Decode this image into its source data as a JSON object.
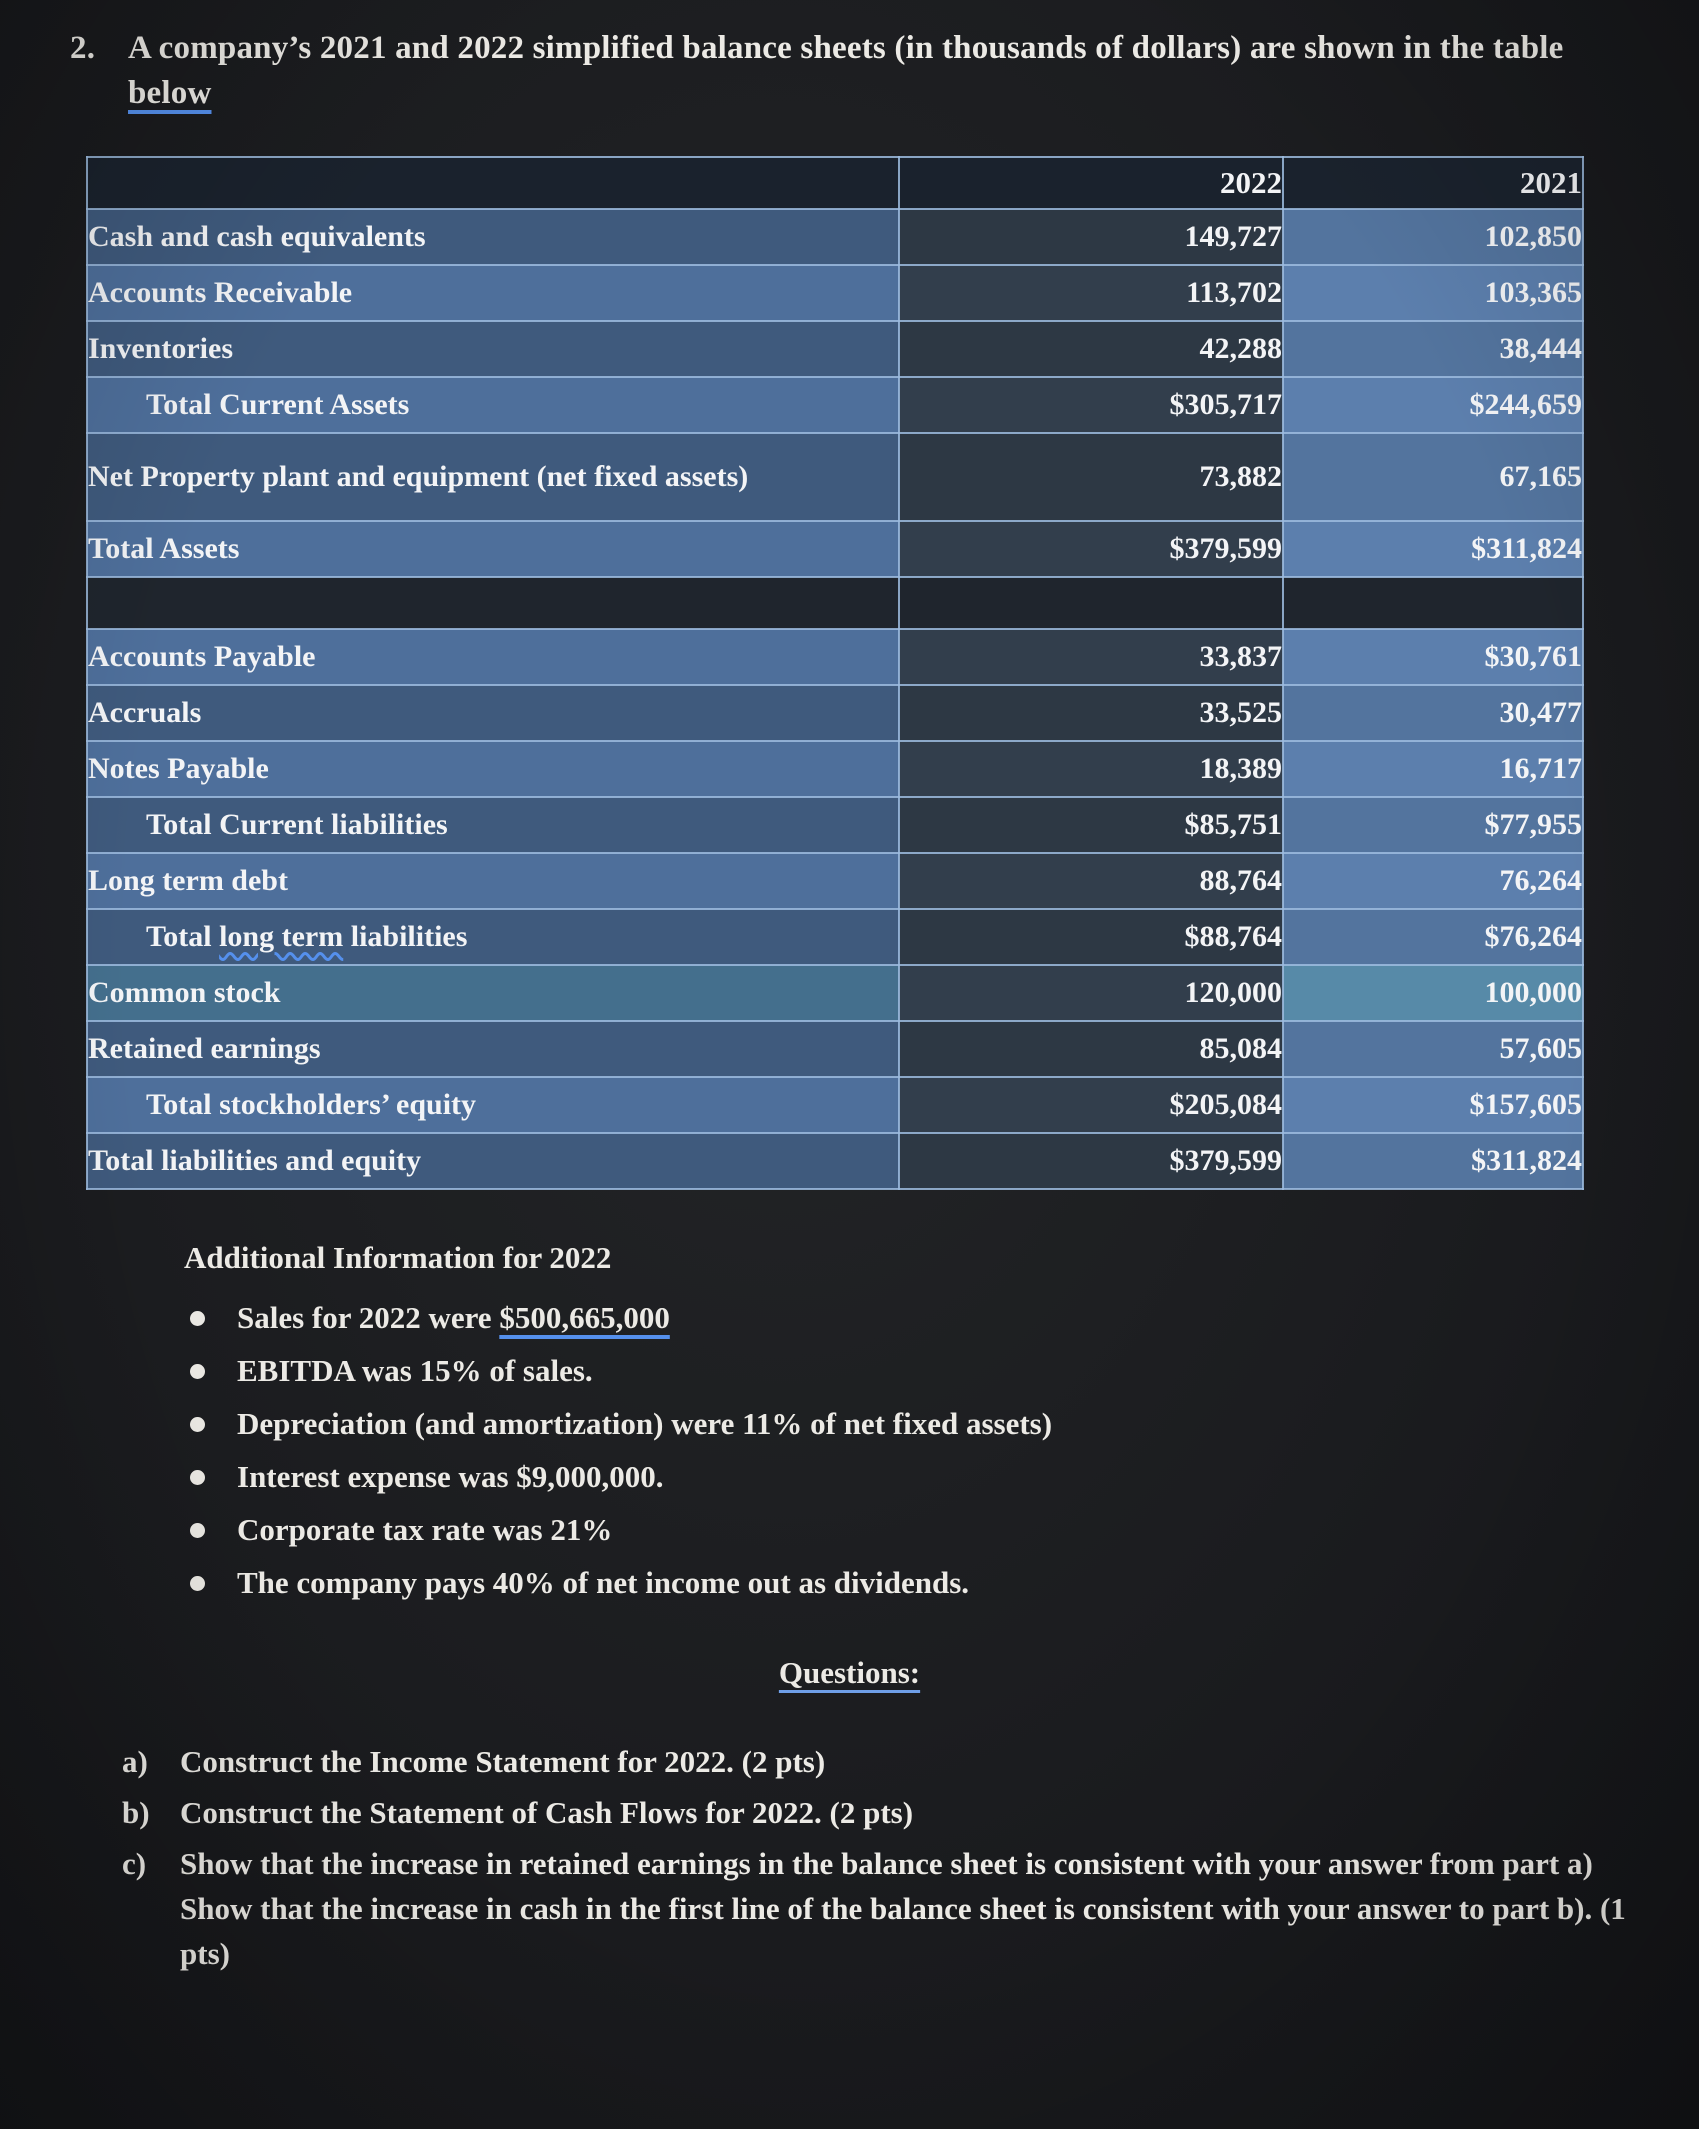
{
  "page": {
    "problem_number": "2.",
    "title_prefix": "A company’s 2021 and 2022 simplified balance sheets (in thousands of dollars) are shown in the table ",
    "title_underlined": "below"
  },
  "table": {
    "headers": {
      "label": "",
      "y2022": "2022",
      "y2021": "2021"
    },
    "rows": [
      {
        "label": "Cash and cash equivalents",
        "v2022": "149,727",
        "v2021": "102,850"
      },
      {
        "label": "Accounts Receivable",
        "v2022": "113,702",
        "v2021": "103,365"
      },
      {
        "label": "Inventories",
        "v2022": "42,288",
        "v2021": "38,444"
      },
      {
        "label": "Total Current Assets",
        "v2022": "$305,717",
        "v2021": "$244,659"
      },
      {
        "label": "Net Property plant and equipment (net fixed assets)",
        "v2022": "73,882",
        "v2021": "67,165"
      },
      {
        "label": "Total Assets",
        "v2022": "$379,599",
        "v2021": "$311,824"
      },
      {
        "label": "",
        "v2022": "",
        "v2021": ""
      },
      {
        "label": "Accounts Payable",
        "v2022": "33,837",
        "v2021": "$30,761"
      },
      {
        "label": "Accruals",
        "v2022": "33,525",
        "v2021": "30,477"
      },
      {
        "label": "Notes Payable",
        "v2022": "18,389",
        "v2021": "16,717"
      },
      {
        "label": "Total Current liabilities",
        "v2022": "$85,751",
        "v2021": "$77,955"
      },
      {
        "label": "Long term debt",
        "v2022": "88,764",
        "v2021": "76,264"
      },
      {
        "label_pre": "Total ",
        "label_u": "long term",
        "label_post": " liabilities",
        "v2022": "$88,764",
        "v2021": "$76,264"
      },
      {
        "label": "Common stock",
        "v2022": "120,000",
        "v2021": "100,000"
      },
      {
        "label": "Retained earnings",
        "v2022": "85,084",
        "v2021": "57,605"
      },
      {
        "label": "Total stockholders’ equity",
        "v2022": "$205,084",
        "v2021": "$157,605"
      },
      {
        "label": "Total liabilities and equity",
        "v2022": "$379,599",
        "v2021": "$311,824"
      }
    ]
  },
  "additional_info": {
    "heading": "Additional Information for 2022",
    "bullets": [
      {
        "pre": "Sales for 2022 were ",
        "link": "$500,665,000",
        "post": ""
      },
      {
        "pre": "EBITDA was 15% of sales.",
        "link": "",
        "post": ""
      },
      {
        "pre": "Depreciation (and amortization) were 11% of net fixed assets)",
        "link": "",
        "post": ""
      },
      {
        "pre": "Interest expense was $9,000,000.",
        "link": "",
        "post": ""
      },
      {
        "pre": "Corporate tax rate was 21%",
        "link": "",
        "post": ""
      },
      {
        "pre": "The company pays 40% of net income out as dividends.",
        "link": "",
        "post": ""
      }
    ]
  },
  "questions": {
    "heading": "Questions:",
    "items": [
      {
        "marker": "a)",
        "text": "Construct the Income Statement for 2022. (2 pts)"
      },
      {
        "marker": "b)",
        "text": "Construct the Statement of Cash Flows for 2022. (2 pts)"
      },
      {
        "marker": "c)",
        "text": "Show that the increase in retained earnings in the balance sheet is consistent with your answer from part a) Show that the increase in cash in the first line of the balance sheet is consistent with your answer to part b). (1 pts)"
      }
    ]
  }
}
